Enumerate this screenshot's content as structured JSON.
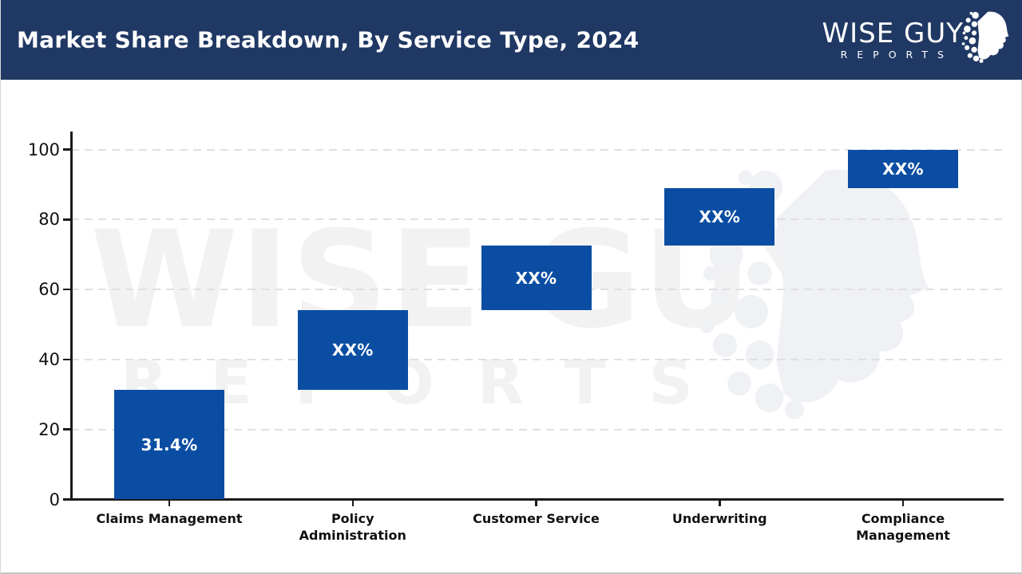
{
  "header": {
    "title": "Market Share Breakdown, By Service Type, 2024",
    "logo": {
      "line1": "WISE GUY",
      "line2": "REPORTS"
    }
  },
  "watermark": {
    "line1": "WISE GUY",
    "line2": "REPORTS"
  },
  "colors": {
    "header_bg": "#203864",
    "bar": "#0b4da2",
    "bar_label": "#ffffff",
    "grid": "#e0e0e0",
    "axis": "#1a1a1a",
    "watermark": "#f2f2f2"
  },
  "chart_data": {
    "type": "bar",
    "subtype": "waterfall",
    "title": "Market Share Breakdown, By Service Type, 2024",
    "xlabel": "",
    "ylabel": "",
    "ylim": [
      0,
      105
    ],
    "yticks": [
      0,
      20,
      40,
      60,
      80,
      100
    ],
    "grid": "horizontal-dashed",
    "legend": "none",
    "categories": [
      "Claims Management",
      "Policy Administration",
      "Customer Service",
      "Underwriting",
      "Compliance Management"
    ],
    "bars": [
      {
        "category": "Claims Management",
        "start": 0,
        "end": 31.4,
        "label": "31.4%",
        "tick_lines": [
          "Claims Management"
        ]
      },
      {
        "category": "Policy Administration",
        "start": 31.4,
        "end": 54,
        "label": "XX%",
        "tick_lines": [
          "Policy",
          "Administration"
        ]
      },
      {
        "category": "Customer Service",
        "start": 54,
        "end": 72.5,
        "label": "XX%",
        "tick_lines": [
          "Customer Service"
        ]
      },
      {
        "category": "Underwriting",
        "start": 72.5,
        "end": 89,
        "label": "XX%",
        "tick_lines": [
          "Underwriting"
        ]
      },
      {
        "category": "Compliance Management",
        "start": 89,
        "end": 100,
        "label": "XX%",
        "tick_lines": [
          "Compliance",
          "Management"
        ]
      }
    ]
  }
}
